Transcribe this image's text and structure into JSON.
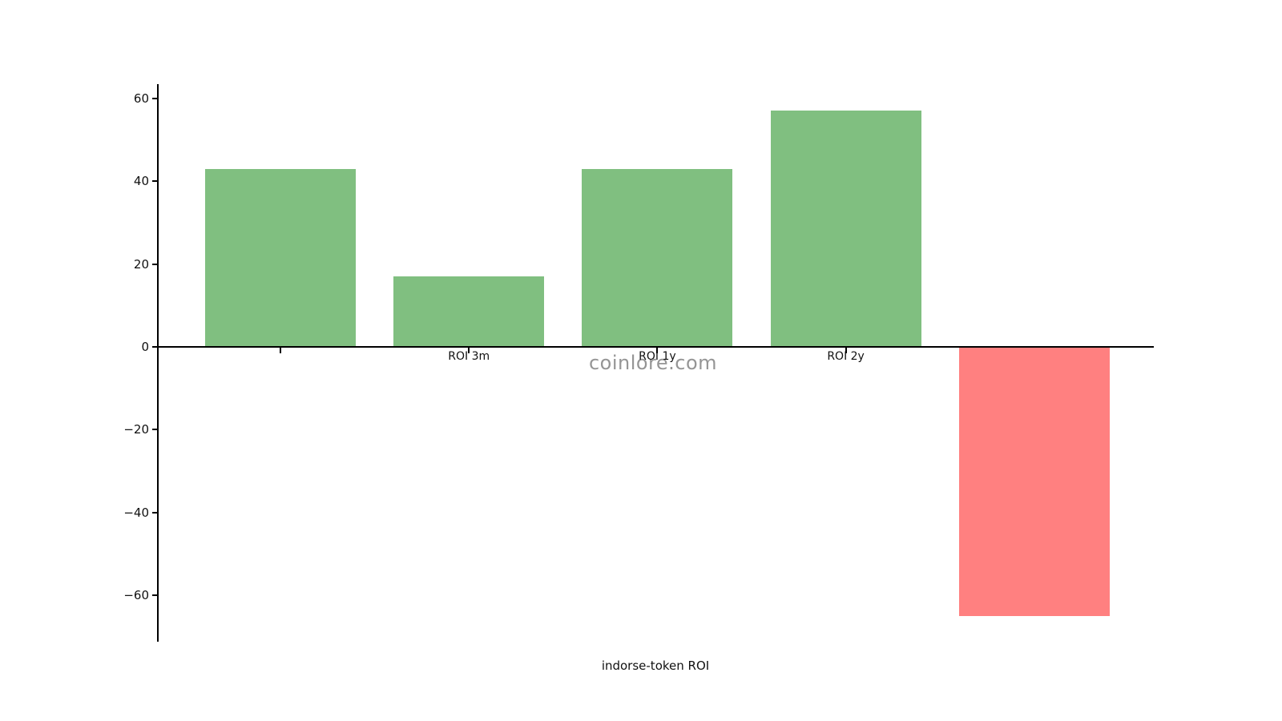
{
  "chart_data": {
    "type": "bar",
    "title": "indorse-token ROI",
    "title_position": "bottom",
    "watermark": "coinlore.com",
    "categories": [
      "",
      "ROI 3m",
      "ROI 1y",
      "ROI 2y",
      ""
    ],
    "values": [
      43,
      17,
      43,
      57,
      -65
    ],
    "bar_colors": [
      "#80bf80",
      "#80bf80",
      "#80bf80",
      "#80bf80",
      "#ff8080"
    ],
    "positive_color": "#80bf80",
    "negative_color": "#ff8080",
    "x_tick_labels": [
      "",
      "ROI 3m",
      "ROI 1y",
      "ROI 2y"
    ],
    "y_ticks": [
      60,
      40,
      20,
      0,
      -20,
      -40,
      -60
    ],
    "y_tick_labels": [
      "60",
      "40",
      "20",
      "0",
      "−20",
      "−40",
      "−60"
    ],
    "ylim": [
      -71,
      63
    ],
    "xlabel": "",
    "ylabel": "",
    "grid": false,
    "legend": false,
    "axis_color": "#000000",
    "text_color": "#111111",
    "watermark_color": "#959595",
    "background_color": "#ffffff"
  }
}
